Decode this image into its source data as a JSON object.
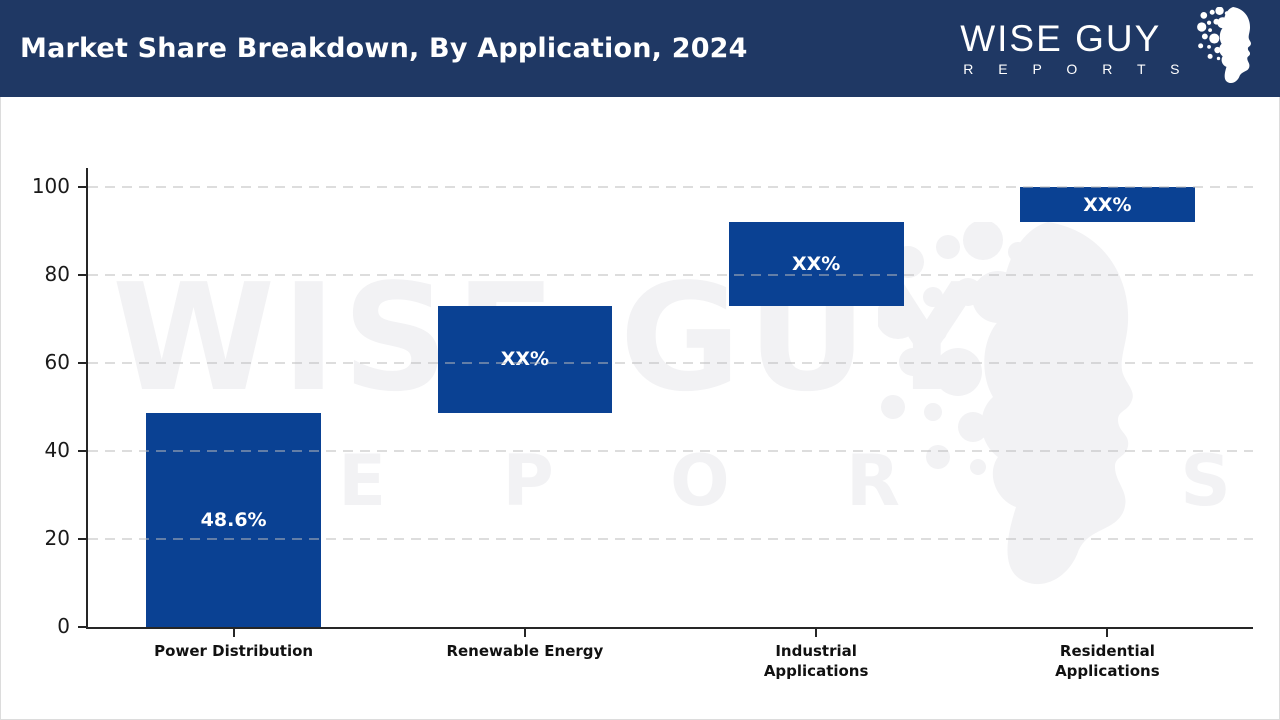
{
  "header": {
    "title": "Market Share Breakdown, By Application, 2024",
    "bg_color": "#1f3864",
    "logo": {
      "line1": "WISE GUY",
      "line2": "R E P O R T S"
    }
  },
  "watermark": {
    "line1": "WISE GUY",
    "line2": "R E P O R T S"
  },
  "chart_data": {
    "type": "bar",
    "variant": "waterfall",
    "title": "Market Share Breakdown, By Application, 2024",
    "categories": [
      "Power Distribution",
      "Renewable Energy",
      "Industrial Applications",
      "Residential Applications"
    ],
    "segments": [
      {
        "category": "Power Distribution",
        "start": 0,
        "end": 48.6,
        "label": "48.6%"
      },
      {
        "category": "Renewable Energy",
        "start": 48.6,
        "end": 73,
        "label": "XX%"
      },
      {
        "category": "Industrial Applications",
        "start": 73,
        "end": 92,
        "label": "XX%"
      },
      {
        "category": "Residential Applications",
        "start": 92,
        "end": 100,
        "label": "XX%"
      }
    ],
    "xlabel": "",
    "ylabel": "",
    "ylim": [
      0,
      100
    ],
    "yticks": [
      0,
      20,
      40,
      60,
      80,
      100
    ],
    "grid": true,
    "legend": false,
    "bar_color": "#0a4193",
    "value_label_color": "#ffffff",
    "grid_color": "rgba(187,187,187,0.5)",
    "axis_color": "#262626"
  }
}
